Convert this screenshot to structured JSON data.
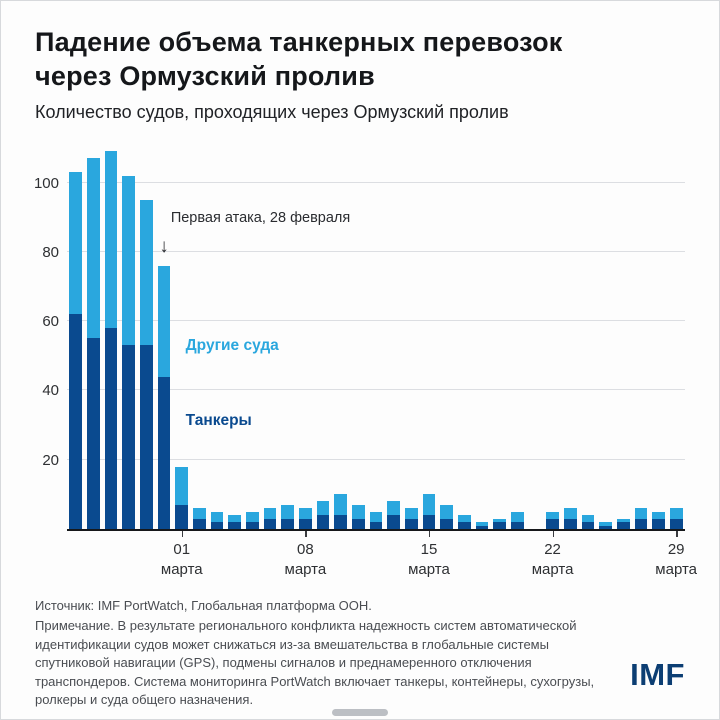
{
  "page": {
    "title_line1": "Падение объема танкерных перевозок",
    "title_line2": "через Ормузский пролив",
    "subtitle": "Количество судов, проходящих через Ормузский пролив"
  },
  "annotation": {
    "text": "Первая атака, 28 февраля",
    "arrow": "↓"
  },
  "legend": {
    "other": "Другие суда",
    "tankers": "Танкеры"
  },
  "footer": {
    "source": "Источник: IMF PortWatch, Глобальная платформа ООН.",
    "note": "Примечание. В результате регионального конфликта надежность систем автоматической идентификации судов может снижаться из-за вмешательства в глобальные системы спутниковой навигации (GPS), подмены сигналов и преднамеренного отключения транспондеров. Система мониторинга PortWatch включает танкеры, контейнеры, сухогрузы, ролкеры и суда общего назначения.",
    "logo": "IMF"
  },
  "colors": {
    "tankers": "#0a4a8f",
    "other": "#2aa7de",
    "grid": "#dcdee2",
    "axis": "#16181b",
    "logo": "#0c3e73"
  },
  "chart_data": {
    "type": "bar",
    "stacked": true,
    "title": "Количество судов, проходящих через Ормузский пролив",
    "xlabel": "",
    "ylabel": "",
    "ylim": [
      0,
      112
    ],
    "yticks": [
      20,
      40,
      60,
      80,
      100
    ],
    "grid": true,
    "legend_position": "inside-plot",
    "categories": [
      "23 фев",
      "24 фев",
      "25 фев",
      "26 фев",
      "27 фев",
      "28 фев",
      "1 мар",
      "2 мар",
      "3 мар",
      "4 мар",
      "5 мар",
      "6 мар",
      "7 мар",
      "8 мар",
      "9 мар",
      "10 мар",
      "11 мар",
      "12 мар",
      "13 мар",
      "14 мар",
      "15 мар",
      "16 мар",
      "17 мар",
      "18 мар",
      "19 мар",
      "20 мар",
      "21 мар",
      "22 мар",
      "23 мар",
      "24 мар",
      "25 мар",
      "26 мар",
      "27 мар",
      "28 мар",
      "29 мар"
    ],
    "series": [
      {
        "name": "Танкеры",
        "color": "#0a4a8f",
        "values": [
          62,
          55,
          58,
          53,
          53,
          44,
          7,
          3,
          2,
          2,
          2,
          3,
          3,
          3,
          4,
          4,
          3,
          2,
          4,
          3,
          4,
          3,
          2,
          1,
          2,
          2,
          0,
          3,
          3,
          2,
          1,
          2,
          3,
          3,
          3
        ]
      },
      {
        "name": "Другие суда",
        "color": "#2aa7de",
        "values": [
          41,
          52,
          51,
          49,
          42,
          32,
          11,
          3,
          3,
          2,
          3,
          3,
          4,
          3,
          4,
          6,
          4,
          3,
          4,
          3,
          6,
          4,
          2,
          1,
          1,
          3,
          0,
          2,
          3,
          2,
          1,
          1,
          3,
          2,
          3
        ]
      }
    ],
    "x_ticks": [
      {
        "index": 6,
        "day": "01",
        "month": "марта"
      },
      {
        "index": 13,
        "day": "08",
        "month": "марта"
      },
      {
        "index": 20,
        "day": "15",
        "month": "марта"
      },
      {
        "index": 27,
        "day": "22",
        "month": "марта"
      },
      {
        "index": 34,
        "day": "29",
        "month": "марта"
      }
    ],
    "annotation_index": 5
  }
}
